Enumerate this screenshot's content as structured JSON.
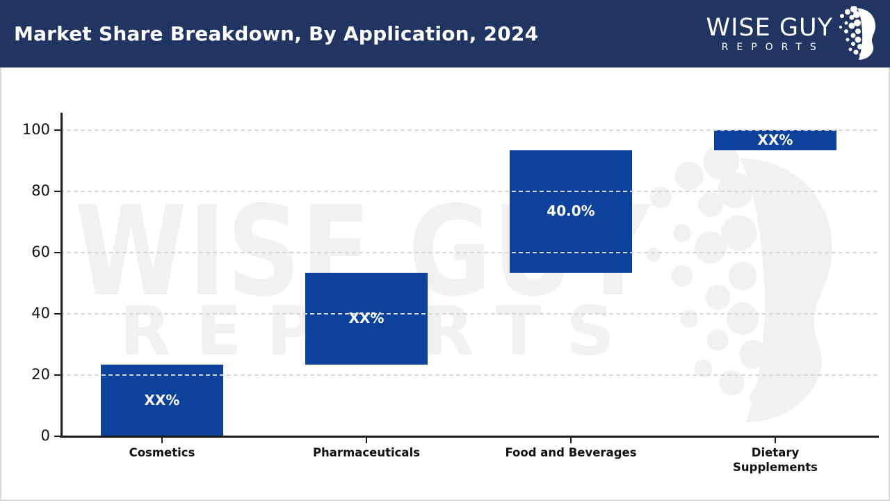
{
  "header": {
    "title": "Market Share Breakdown, By Application, 2024",
    "bg_color": "#203561",
    "logo_line1": "WISE GUY",
    "logo_line2": "REPORTS"
  },
  "watermark": {
    "line1": "WISE GUY",
    "line2": "REPORTS"
  },
  "chart_data": {
    "type": "bar",
    "subtype": "waterfall",
    "title": "Market Share Breakdown, By Application, 2024",
    "categories": [
      "Cosmetics",
      "Pharmaceuticals",
      "Food and Beverages",
      "Dietary\nSupplements"
    ],
    "values": [
      23.3,
      30.0,
      40.0,
      6.7
    ],
    "cumulative_start": [
      0,
      23.3,
      53.3,
      93.3
    ],
    "bar_labels": [
      "XX%",
      "XX%",
      "40.0%",
      "XX%"
    ],
    "bar_color": "#0c419c",
    "bar_label_color": "#ffffff",
    "ylim": [
      0,
      100
    ],
    "yticks": [
      0,
      20,
      40,
      60,
      80,
      100
    ],
    "xlabel": "",
    "ylabel": "",
    "grid": "horizontal-dashed",
    "legend": "none"
  }
}
